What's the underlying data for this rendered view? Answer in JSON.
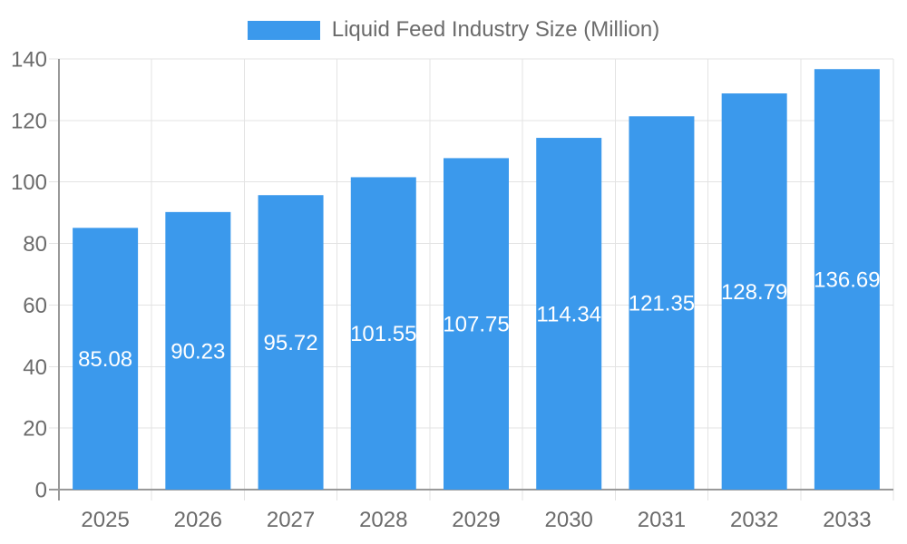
{
  "page": {
    "background": "#FFFFFF"
  },
  "legend": {
    "label": "Liquid Feed Industry Size (Million)"
  },
  "chart_data": {
    "type": "bar",
    "title": "Liquid Feed Industry Size (Million)",
    "categories": [
      "2025",
      "2026",
      "2027",
      "2028",
      "2029",
      "2030",
      "2031",
      "2032",
      "2033"
    ],
    "series": [
      {
        "name": "Liquid Feed Industry Size (Million)",
        "values": [
          85.08,
          90.23,
          95.72,
          101.55,
          107.75,
          114.34,
          121.35,
          128.79,
          136.69
        ]
      }
    ],
    "value_labels": [
      "85.08",
      "90.23",
      "95.72",
      "101.55",
      "107.75",
      "114.34",
      "121.35",
      "128.79",
      "136.69"
    ],
    "xlabel": "",
    "ylabel": "",
    "ylim": [
      0,
      140
    ],
    "ytick_step": 20,
    "yticks": [
      0,
      20,
      40,
      60,
      80,
      100,
      120,
      140
    ],
    "grid": true,
    "legend_position": "top",
    "colors": {
      "bar": "#3B99EC",
      "grid": "#E3E3E3",
      "axis": "#999999",
      "text": "#6B6B6B",
      "value_label": "#FFFFFF",
      "background": "#FFFFFF"
    }
  }
}
